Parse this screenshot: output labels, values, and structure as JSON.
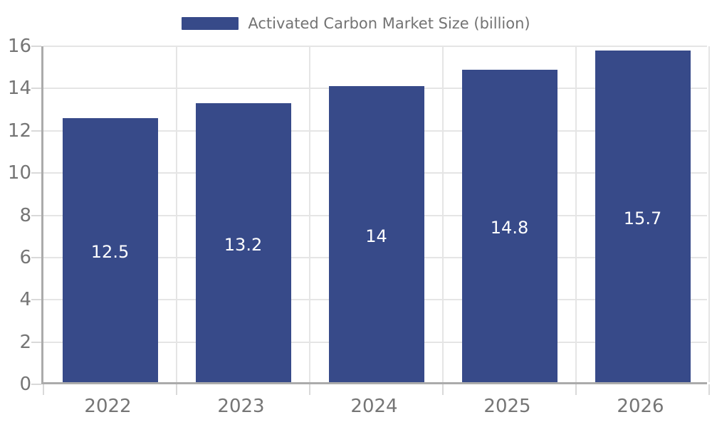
{
  "chart_data": {
    "type": "bar",
    "legend_label": "Activated Carbon Market Size (billion)",
    "legend_position": "top-center",
    "categories": [
      "2022",
      "2023",
      "2024",
      "2025",
      "2026"
    ],
    "series": [
      {
        "name": "Activated Carbon Market Size (billion)",
        "values": [
          12.5,
          13.2,
          14,
          14.8,
          15.7
        ],
        "value_labels": [
          "12.5",
          "13.2",
          "14",
          "14.8",
          "15.7"
        ]
      }
    ],
    "xlabel": "",
    "ylabel": "",
    "ylim": [
      0,
      16
    ],
    "ytick_step": 2,
    "ytick_labels": [
      "0",
      "2",
      "4",
      "6",
      "8",
      "10",
      "12",
      "14",
      "16"
    ],
    "grid": true,
    "colors": {
      "bar": "#374a89",
      "grid": "#e5e5e5",
      "axis": "#ababab",
      "tick": "#d9d9d9",
      "tick_text": "#757575",
      "legend_text": "#737373",
      "bar_label": "#ffffff",
      "background": "#ffffff"
    }
  }
}
